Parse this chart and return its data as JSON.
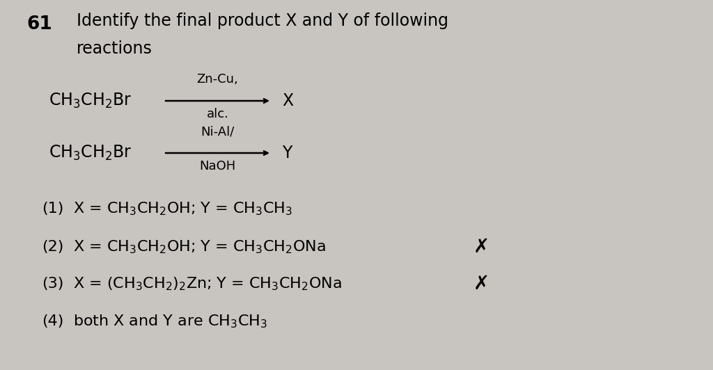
{
  "background_color": "#c8c4c0",
  "title_number": "61",
  "title_text_line1": "Identify the final product X and Y of following",
  "title_text_line2": "reactions",
  "reaction1_reactant": "CH$_3$CH$_2$Br",
  "reaction1_reagent_top": "Zn-Cu,",
  "reaction1_reagent_bottom": "alc.",
  "reaction1_product": "X",
  "reaction2_reactant": "CH$_3$CH$_2$Br",
  "reaction2_reagent_top": "Ni-Al/",
  "reaction2_reagent_bottom": "NaOH",
  "reaction2_product": "Y",
  "option1_num": "(1)",
  "option1_txt": "X = CH$_3$CH$_2$OH; Y = CH$_3$CH$_3$",
  "option2_num": "(2)",
  "option2_txt": "X = CH$_3$CH$_2$OH; Y = CH$_3$CH$_2$ONa",
  "option3_num": "(3)",
  "option3_txt": "X = (CH$_3$CH$_2$)$_2$Zn; Y = CH$_3$CH$_2$ONa",
  "option4_num": "(4)",
  "option4_txt": "both X and Y are CH$_3$CH$_3$",
  "font_size_title": 17,
  "font_size_number": 19,
  "font_size_reactions": 17,
  "font_size_reagent": 13,
  "font_size_options": 16
}
